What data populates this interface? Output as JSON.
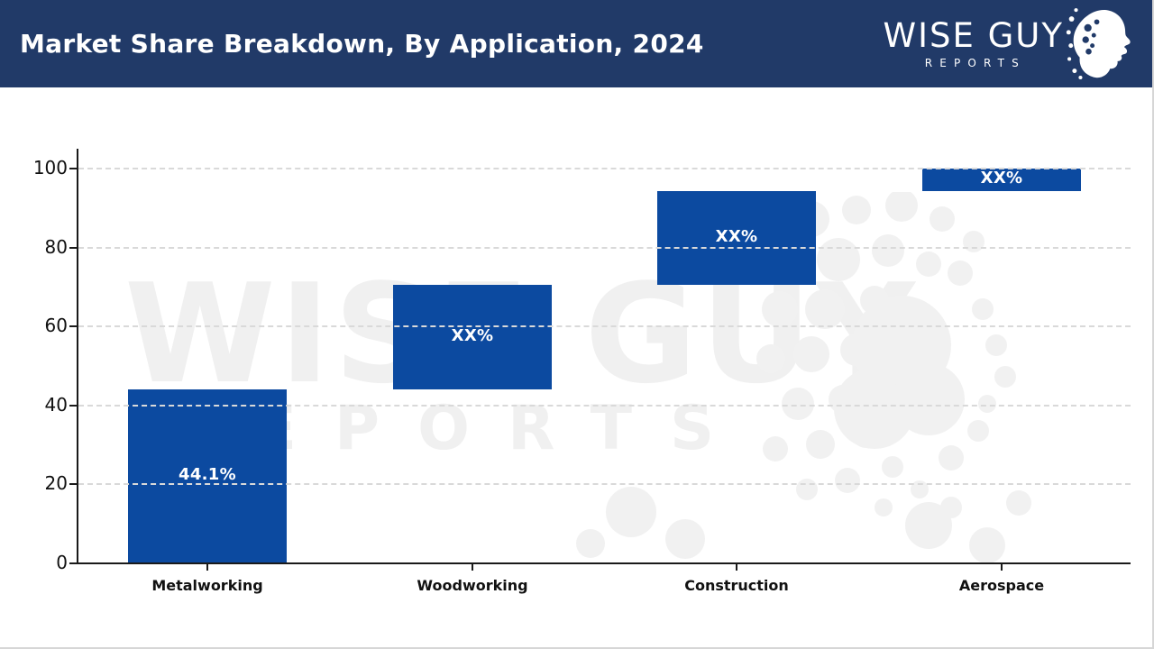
{
  "header": {
    "title": "Market Share Breakdown, By Application, 2024",
    "logo": {
      "line1": "WISE GUY",
      "line2": "REPORTS"
    }
  },
  "watermark": {
    "line1": "WISE GUY",
    "line2": "REPORTS"
  },
  "chart_data": {
    "type": "bar",
    "subtype": "waterfall",
    "title": "Market Share Breakdown, By Application, 2024",
    "categories": [
      "Metalworking",
      "Woodworking",
      "Construction",
      "Aerospace"
    ],
    "segments": [
      {
        "category": "Metalworking",
        "start": 0,
        "end": 44.1,
        "label": "44.1%"
      },
      {
        "category": "Woodworking",
        "start": 44.1,
        "end": 70.5,
        "label": "XX%"
      },
      {
        "category": "Construction",
        "start": 70.5,
        "end": 94.3,
        "label": "XX%"
      },
      {
        "category": "Aerospace",
        "start": 94.3,
        "end": 100,
        "label": "XX%"
      }
    ],
    "yticks": [
      0,
      20,
      40,
      60,
      80,
      100
    ],
    "ylim": [
      0,
      105
    ],
    "xlabel": "",
    "ylabel": "",
    "grid": "horizontal-dashed",
    "legend": "none",
    "bar_color": "#0c4aa0"
  },
  "colors": {
    "header_navy": "#213a68",
    "bar_blue": "#0c4aa0",
    "gridline_gray": "#d9d9d9",
    "axis_black": "#1a1a1a",
    "watermark_gray": "#f0f0f0",
    "frame_gray": "#d6d6d6",
    "text_white": "#ffffff"
  }
}
